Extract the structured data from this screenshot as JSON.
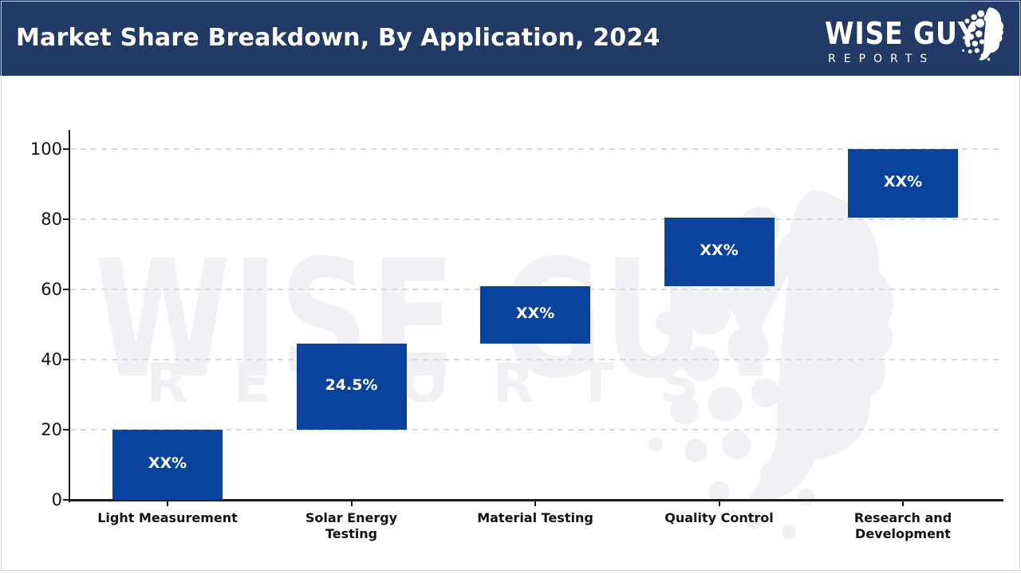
{
  "header": {
    "title": "Market Share Breakdown, By Application, 2024",
    "logo": {
      "line1": "WISE GUY",
      "line2": "REPORTS"
    }
  },
  "watermark": {
    "line1": "WISE GUY",
    "line2": "REPORTS"
  },
  "colors": {
    "header_bg": "#213a66",
    "bar": "#09439c",
    "bar_label": "#ffffff",
    "grid": "#dadada",
    "axis": "#1b1b1b",
    "watermark": "#f0f1f4"
  },
  "chart_data": {
    "type": "bar",
    "subtype": "waterfall",
    "title": "Market Share Breakdown, By Application, 2024",
    "xlabel": "",
    "ylabel": "",
    "categories": [
      "Light Measurement",
      "Solar Energy\nTesting",
      "Material Testing",
      "Quality Control",
      "Research and\nDevelopment"
    ],
    "segments": [
      {
        "category": "Light Measurement",
        "start": 0,
        "end": 20,
        "label": "XX%"
      },
      {
        "category": "Solar Energy Testing",
        "start": 20,
        "end": 44.5,
        "label": "24.5%"
      },
      {
        "category": "Material Testing",
        "start": 44.5,
        "end": 61,
        "label": "XX%"
      },
      {
        "category": "Quality Control",
        "start": 61,
        "end": 80.5,
        "label": "XX%"
      },
      {
        "category": "Research and Development",
        "start": 80.5,
        "end": 100,
        "label": "XX%"
      }
    ],
    "yticks": [
      0,
      20,
      40,
      60,
      80,
      100
    ],
    "ylim": [
      0,
      105
    ],
    "grid": "horizontal-dashed",
    "legend": "none"
  }
}
